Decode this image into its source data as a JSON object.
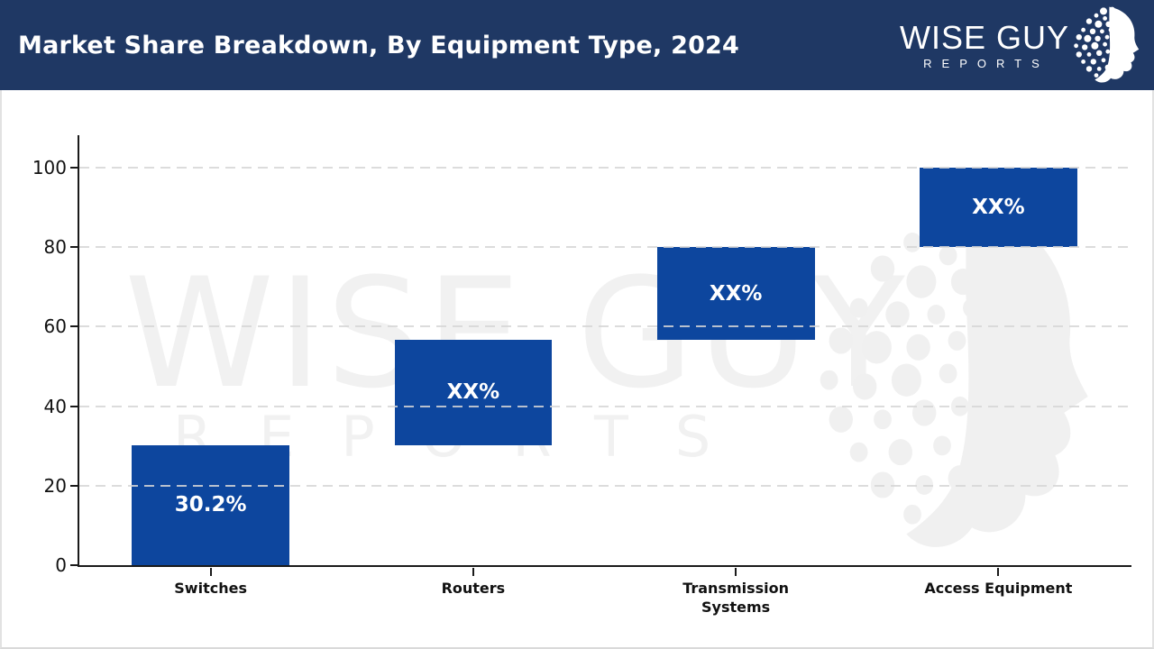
{
  "header": {
    "bg_color": "#1f3864",
    "title": "Market Share Breakdown, By Equipment Type, 2024",
    "logo": {
      "wordmark": "WISE GUY",
      "subtext": "REPORTS"
    }
  },
  "watermark": {
    "wordmark": "WISE GUY",
    "subtext": "REPORTS"
  },
  "chart_data": {
    "type": "bar",
    "subtype": "waterfall",
    "title": "Market Share Breakdown, By Equipment Type, 2024",
    "categories": [
      "Switches",
      "Routers",
      "Transmission Systems",
      "Access Equipment"
    ],
    "segments": [
      {
        "category": "Switches",
        "start": 0,
        "end": 30.2,
        "label": "30.2%"
      },
      {
        "category": "Routers",
        "start": 30.2,
        "end": 56.7,
        "label": "XX%"
      },
      {
        "category": "Transmission Systems",
        "start": 56.7,
        "end": 80,
        "label": "XX%"
      },
      {
        "category": "Access Equipment",
        "start": 80,
        "end": 100,
        "label": "XX%"
      }
    ],
    "yticks": [
      0,
      20,
      40,
      60,
      80,
      100
    ],
    "ylim": [
      0,
      108
    ],
    "grid": "horizontal-dashed",
    "legend": "none",
    "bar_color": "#0d469e",
    "gridline_color": "#d6d6d6",
    "axis_color": "#1a1a1a",
    "value_label_color": "#ffffff",
    "watermark_color": "#f1f1f1"
  }
}
